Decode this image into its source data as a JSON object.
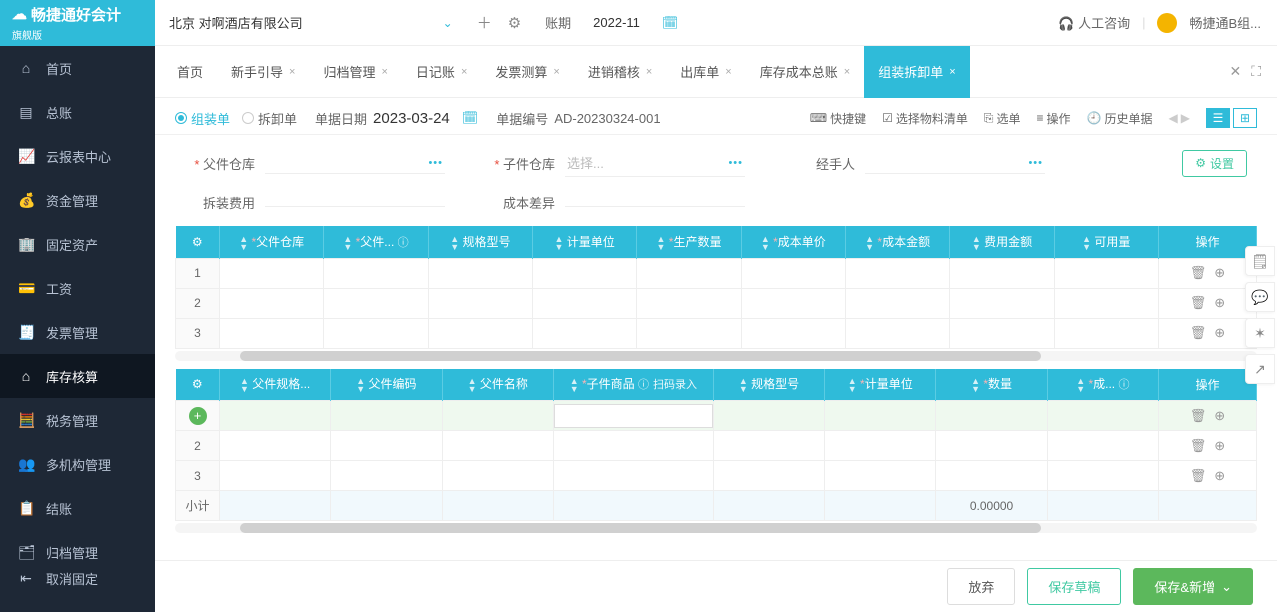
{
  "brand": {
    "name": "畅捷通好会计",
    "edition": "旗舰版"
  },
  "company": "北京 对啊酒店有限公司",
  "period": {
    "label": "账期",
    "value": "2022-11"
  },
  "topRight": {
    "consult": "人工咨询",
    "user": "畅捷通B组..."
  },
  "sidebar": [
    {
      "icon": "⌂",
      "label": "首页"
    },
    {
      "icon": "▤",
      "label": "总账"
    },
    {
      "icon": "📈",
      "label": "云报表中心"
    },
    {
      "icon": "💰",
      "label": "资金管理"
    },
    {
      "icon": "🏢",
      "label": "固定资产"
    },
    {
      "icon": "💳",
      "label": "工资"
    },
    {
      "icon": "🧾",
      "label": "发票管理"
    },
    {
      "icon": "⌂",
      "label": "库存核算",
      "active": true
    },
    {
      "icon": "🧮",
      "label": "税务管理"
    },
    {
      "icon": "👥",
      "label": "多机构管理"
    },
    {
      "icon": "📋",
      "label": "结账"
    },
    {
      "icon": "🗂",
      "label": "归档管理"
    }
  ],
  "sidebarFixed": {
    "icon": "⇤",
    "label": "取消固定"
  },
  "tabs": [
    {
      "label": "首页"
    },
    {
      "label": "新手引导",
      "closable": true
    },
    {
      "label": "归档管理",
      "closable": true
    },
    {
      "label": "日记账",
      "closable": true
    },
    {
      "label": "发票测算",
      "closable": true
    },
    {
      "label": "进销稽核",
      "closable": true
    },
    {
      "label": "出库单",
      "closable": true
    },
    {
      "label": "库存成本总账",
      "closable": true
    },
    {
      "label": "组装拆卸单",
      "closable": true,
      "active": true
    }
  ],
  "docType": {
    "assemble": "组装单",
    "disassemble": "拆卸单"
  },
  "billDate": {
    "label": "单据日期",
    "value": "2023-03-24"
  },
  "billNo": {
    "label": "单据编号",
    "value": "AD-20230324-001"
  },
  "toolbar": {
    "shortcut": "快捷键",
    "materials": "选择物料清单",
    "select": "选单",
    "ops": "操作",
    "history": "历史单据"
  },
  "fields": {
    "parentWh": "父件仓库",
    "childWh": "子件仓库",
    "childWhPh": "选择...",
    "handler": "经手人",
    "fee": "拆装费用",
    "costDiff": "成本差异",
    "settings": "设置"
  },
  "table1": {
    "headers": [
      "父件仓库",
      "父件...",
      "规格型号",
      "计量单位",
      "生产数量",
      "成本单价",
      "成本金额",
      "费用金额",
      "可用量"
    ],
    "required": [
      true,
      true,
      false,
      false,
      true,
      true,
      true,
      false,
      false
    ],
    "help": [
      false,
      true,
      false,
      false,
      false,
      false,
      false,
      false,
      false
    ],
    "opHeader": "操作",
    "rows": [
      "1",
      "2",
      "3"
    ]
  },
  "table2": {
    "headers": [
      "父件规格...",
      "父件编码",
      "父件名称",
      "子件商品",
      "规格型号",
      "计量单位",
      "数量",
      "成..."
    ],
    "required": [
      false,
      false,
      false,
      true,
      false,
      true,
      true,
      true
    ],
    "help": [
      false,
      false,
      false,
      true,
      false,
      false,
      false,
      true
    ],
    "scanLabel": "扫码录入",
    "opHeader": "操作",
    "rows": [
      "",
      "2",
      "3"
    ],
    "subtotal": {
      "label": "小计",
      "qty": "0.00000"
    }
  },
  "footer": {
    "discard": "放弃",
    "draft": "保存草稿",
    "save": "保存&新增"
  }
}
